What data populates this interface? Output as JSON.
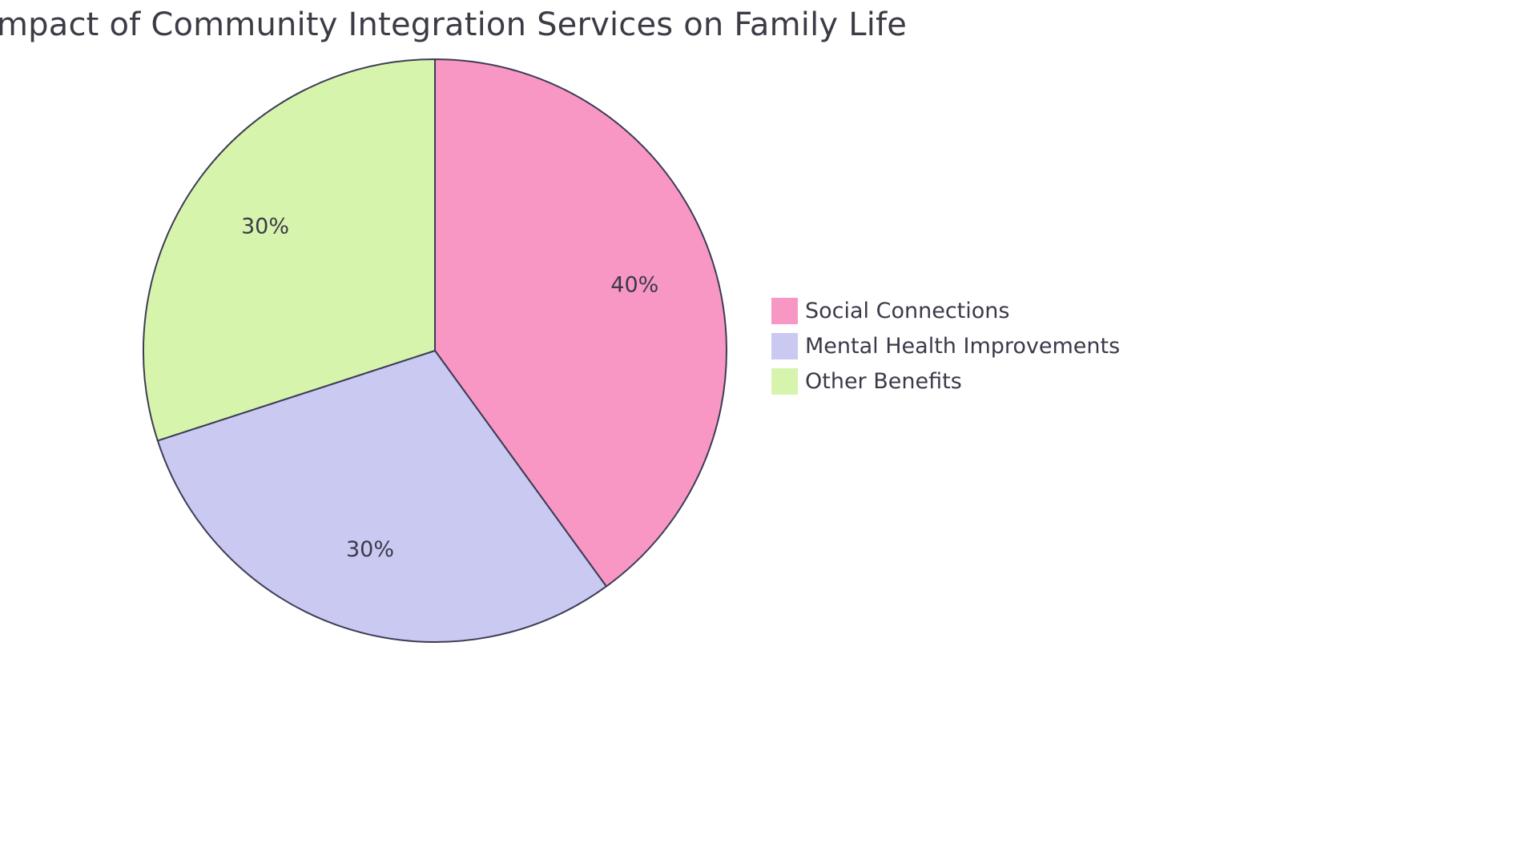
{
  "page": {
    "background": "#FFFFFF"
  },
  "chart_data": {
    "type": "pie",
    "title": "Impact of Community Integration Services on Family Life",
    "labels": [
      "Social Connections",
      "Mental Health Improvements",
      "Other Benefits"
    ],
    "values": [
      40,
      30,
      30
    ],
    "value_labels": [
      "40%",
      "30%",
      "30%"
    ],
    "colors": [
      "#F896C4",
      "#C9C9F2",
      "#D7F4AC"
    ],
    "stroke_color": "#3C3C55",
    "text_color": "#3A3A4A",
    "start_angle_deg": -90,
    "direction": "clockwise",
    "legend_position": "right",
    "grid": "off"
  }
}
